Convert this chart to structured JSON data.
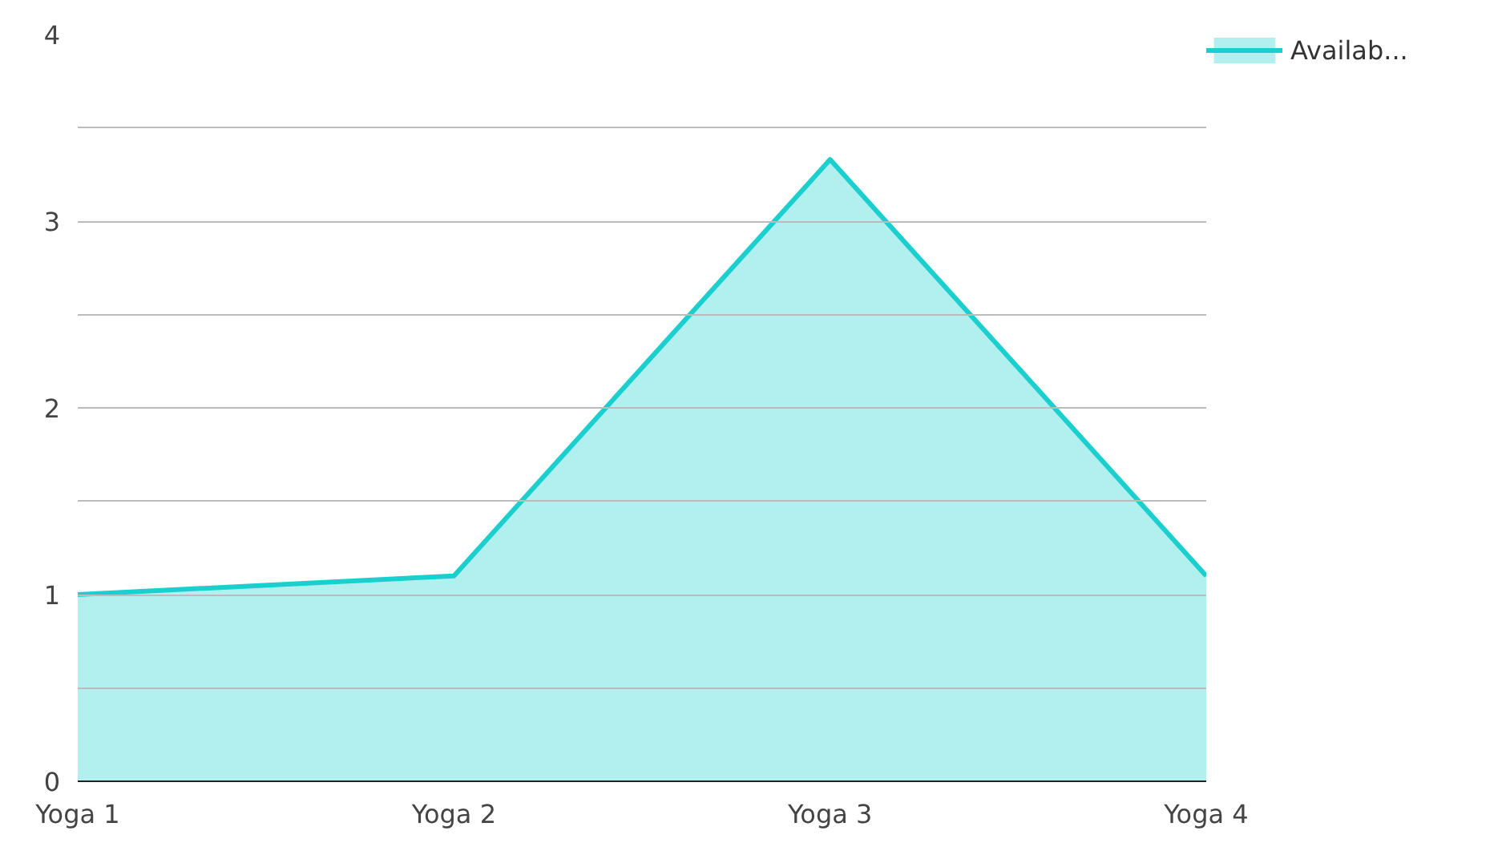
{
  "chart_data": {
    "type": "area",
    "categories": [
      "Yoga 1",
      "Yoga 2",
      "Yoga 3",
      "Yoga 4"
    ],
    "series": [
      {
        "name": "Availab...",
        "color": "#1ccfcf",
        "values": [
          1.0,
          1.1,
          3.33,
          1.1
        ]
      }
    ],
    "ylim": [
      0,
      4
    ],
    "yticks": [
      0,
      {
        "value": 0.5,
        "label": null
      },
      1,
      {
        "value": 1.5,
        "label": null
      },
      2,
      {
        "value": 2.5,
        "label": null
      },
      3,
      {
        "value": 3.5,
        "label": null
      },
      4
    ],
    "grid": "y",
    "legend": "top right"
  }
}
